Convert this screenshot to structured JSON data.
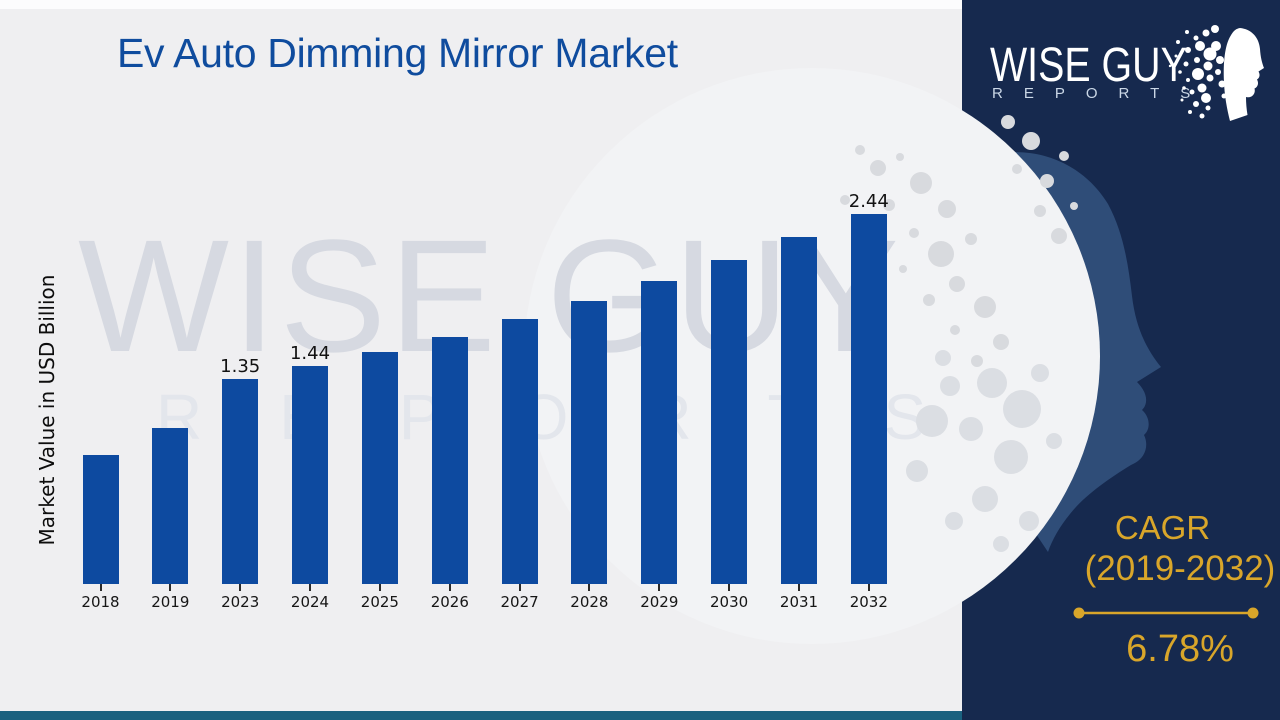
{
  "page": {
    "title": "Ev Auto Dimming Mirror Market",
    "y_axis_label": "Market Value in USD Billion"
  },
  "watermark": {
    "brand": "WISE GUY",
    "sub": "REPORTS"
  },
  "logo": {
    "brand": "WISE GUY",
    "sub": "REPORTS"
  },
  "cagr": {
    "heading": "CAGR",
    "range": "(2019-2032)",
    "value": "6.78%"
  },
  "chart_data": {
    "type": "bar",
    "title": "Ev Auto Dimming Mirror Market",
    "xlabel": "",
    "ylabel": "Market Value in USD Billion",
    "categories": [
      "2018",
      "2019",
      "2023",
      "2024",
      "2025",
      "2026",
      "2027",
      "2028",
      "2029",
      "2030",
      "2031",
      "2032"
    ],
    "values": [
      0.85,
      1.03,
      1.35,
      1.44,
      1.53,
      1.63,
      1.75,
      1.87,
      2.0,
      2.14,
      2.29,
      2.44
    ],
    "data_labels": [
      "",
      "",
      "1.35",
      "1.44",
      "",
      "",
      "",
      "",
      "",
      "",
      "",
      "2.44"
    ],
    "ylim": [
      0,
      2.6
    ],
    "grid": false,
    "legend": false,
    "bar_color": "#0d4aa0"
  },
  "colors": {
    "background": "#efeff1",
    "bar": "#0d4aa0",
    "title_blue": "#0f4c9e",
    "navy_panel": "#16294e",
    "gold": "#d9a62a",
    "teal_strip": "#1a617f"
  }
}
